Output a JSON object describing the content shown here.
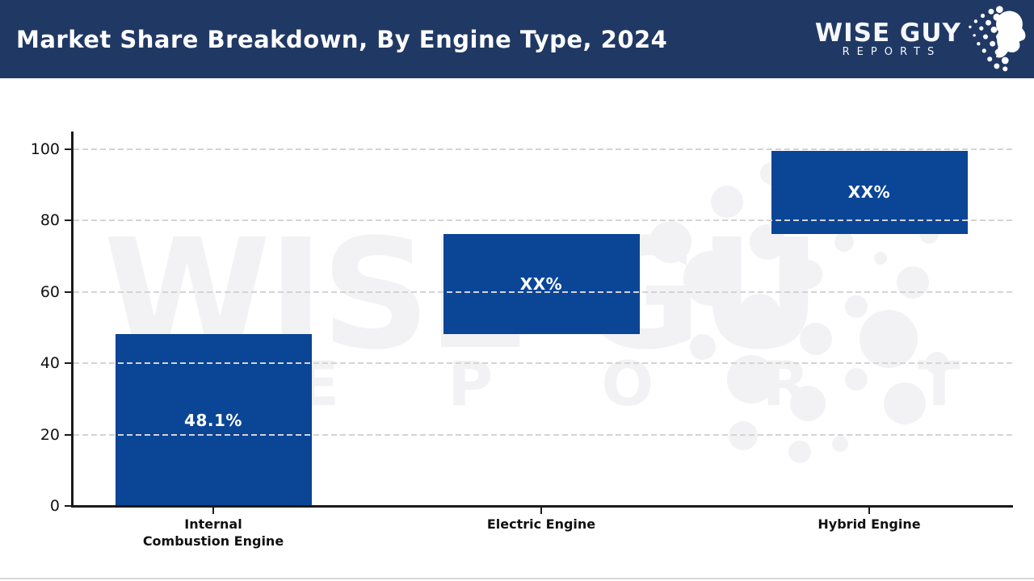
{
  "header": {
    "title": "Market Share Breakdown, By Engine Type, 2024",
    "logo": {
      "line1": "WISE GUY",
      "line2": "REPORTS"
    }
  },
  "watermark": {
    "line1": "WISE GU",
    "line2": "R E P O R T S"
  },
  "chart_data": {
    "type": "bar",
    "subtype": "waterfall",
    "title": "Market Share Breakdown, By Engine Type, 2024",
    "categories": [
      "Internal Combustion Engine",
      "Electric Engine",
      "Hybrid Engine"
    ],
    "categories_display": [
      [
        "Internal",
        "Combustion Engine"
      ],
      [
        "Electric Engine"
      ],
      [
        "Hybrid Engine"
      ]
    ],
    "segments": [
      {
        "category": "Internal Combustion Engine",
        "start": 0,
        "end": 48.1,
        "label": "48.1%"
      },
      {
        "category": "Electric Engine",
        "start": 48.1,
        "end": 76.3,
        "label": "XX%"
      },
      {
        "category": "Hybrid Engine",
        "start": 76.3,
        "end": 99.6,
        "label": "XX%"
      }
    ],
    "ylim": [
      0,
      100
    ],
    "yticks": [
      0,
      20,
      40,
      60,
      80,
      100
    ],
    "xlabel": "",
    "ylabel": "",
    "grid": "dashed horizontal, drawn over bars",
    "legend": "none",
    "bar_color": "#0a4596",
    "bar_label_color": "#ffffff",
    "axis_color": "#1a1a1a",
    "gridline_color": "#d4d4d4"
  },
  "colors": {
    "header_bg": "#203864",
    "header_text": "#ffffff",
    "watermark": "#f2f2f4",
    "background": "#ffffff",
    "bottom_rule": "#d9d9d9"
  }
}
